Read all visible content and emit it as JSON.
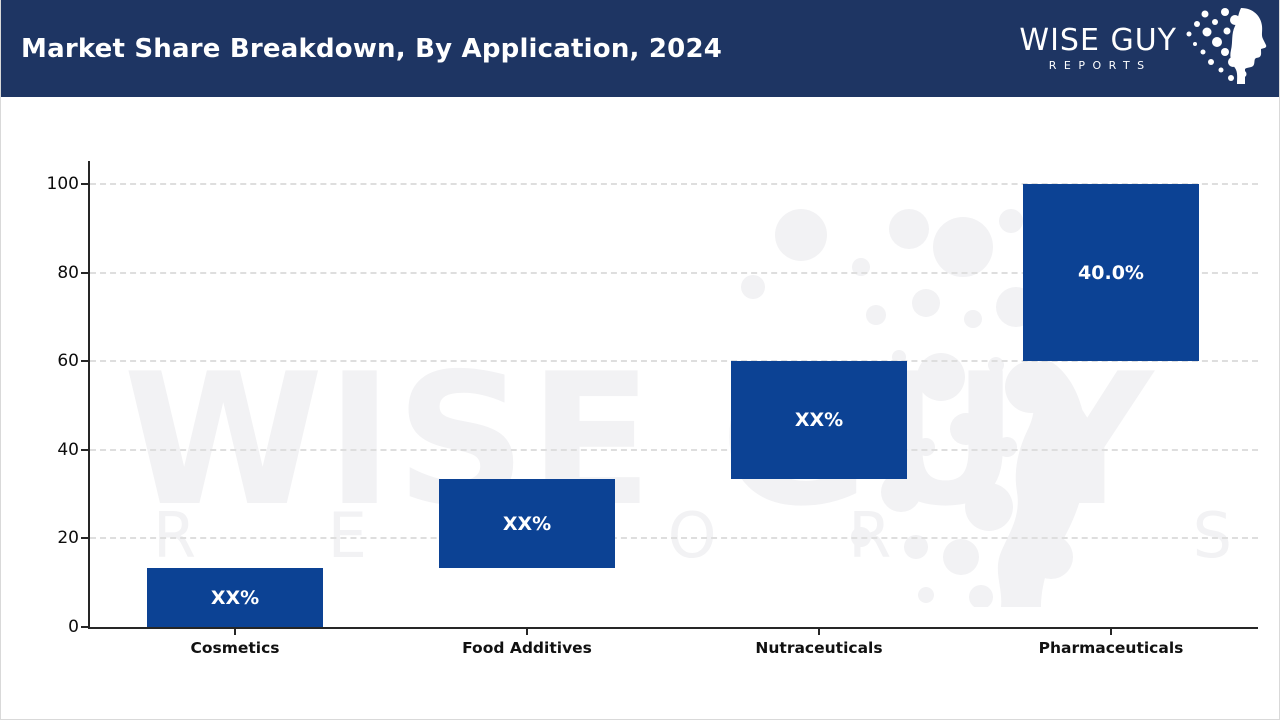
{
  "header": {
    "title": "Market Share Breakdown, By Application, 2024",
    "background": "#1e3563",
    "logo": {
      "line1": "WISE GUY",
      "line2": "REPORTS",
      "face_icon": "dotted-face-profile"
    }
  },
  "watermark": {
    "line1": "WISE GUY",
    "line2": "REPORTS",
    "color": "#f2f2f4"
  },
  "chart_data": {
    "type": "bar",
    "subtype": "floating-waterfall",
    "title": "Market Share Breakdown, By Application, 2024",
    "xlabel": "",
    "ylabel": "",
    "categories": [
      "Cosmetics",
      "Food Additives",
      "Nutraceuticals",
      "Pharmaceuticals"
    ],
    "segments": [
      {
        "category": "Cosmetics",
        "start": 0,
        "end": 13.3,
        "label": "XX%"
      },
      {
        "category": "Food Additives",
        "start": 13.3,
        "end": 33.3,
        "label": "XX%"
      },
      {
        "category": "Nutraceuticals",
        "start": 33.3,
        "end": 60.0,
        "label": "XX%"
      },
      {
        "category": "Pharmaceuticals",
        "start": 60.0,
        "end": 100.0,
        "label": "40.0%"
      }
    ],
    "yticks": [
      0,
      20,
      40,
      60,
      80,
      100
    ],
    "ylim": [
      0,
      105
    ],
    "grid": true,
    "grid_style": "dashed",
    "legend": "none",
    "bar_color": "#0c4294",
    "bar_label_color": "#ffffff",
    "axis_color": "#262626",
    "grid_color": "#dedede"
  }
}
